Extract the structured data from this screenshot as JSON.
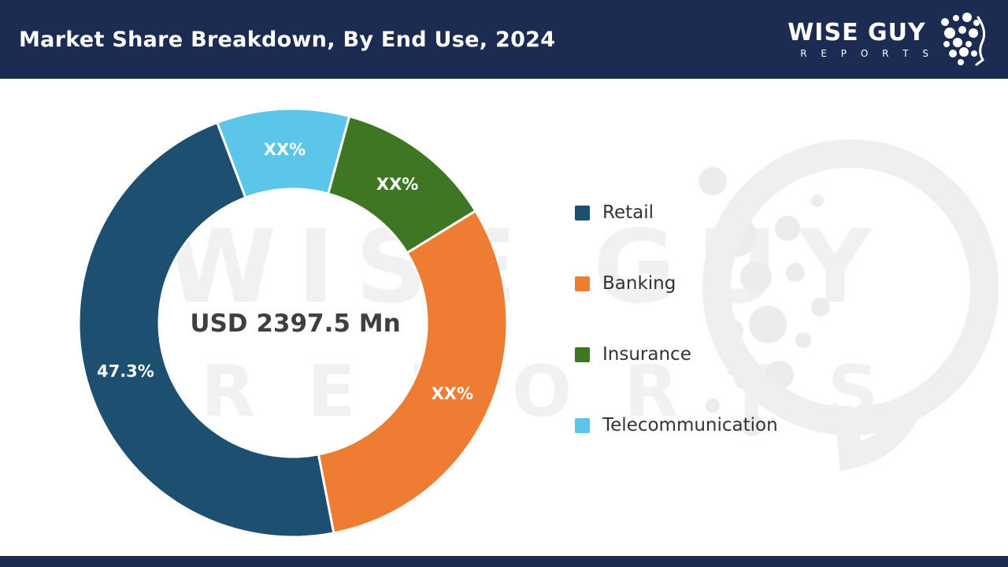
{
  "header": {
    "title": "Market Share Breakdown, By End Use, 2024",
    "logo": {
      "name": "WISE GUY",
      "tagline": "R E P O R T S"
    }
  },
  "watermark": {
    "line1": "WISE GUY",
    "line2": "REPORTS"
  },
  "chart_data": {
    "type": "pie",
    "subtype": "donut",
    "title": "Market Share Breakdown, By End Use, 2024",
    "center_label": "USD 2397.5 Mn",
    "unit": "%",
    "legend_position": "right",
    "direction": "clockwise",
    "start_angle_deg": 169,
    "draw_order": [
      "Retail",
      "Telecommunication",
      "Insurance",
      "Banking"
    ],
    "masked_values_estimated": true,
    "segments": [
      {
        "name": "Retail",
        "label": "47.3%",
        "value_pct": 47.3,
        "color": "#1d5070"
      },
      {
        "name": "Banking",
        "label": "XX%",
        "value_pct": 30.7,
        "color": "#ee7d33"
      },
      {
        "name": "Insurance",
        "label": "XX%",
        "value_pct": 12.0,
        "color": "#3e7623"
      },
      {
        "name": "Telecommunication",
        "label": "XX%",
        "value_pct": 10.0,
        "color": "#5bc6ea"
      }
    ]
  },
  "colors": {
    "header_bg": "#1c2b52",
    "footer_bg": "#1c2b52",
    "center_text": "#3f3f3f",
    "legend_text": "#333333",
    "segment_label_text": "#ffffff"
  }
}
